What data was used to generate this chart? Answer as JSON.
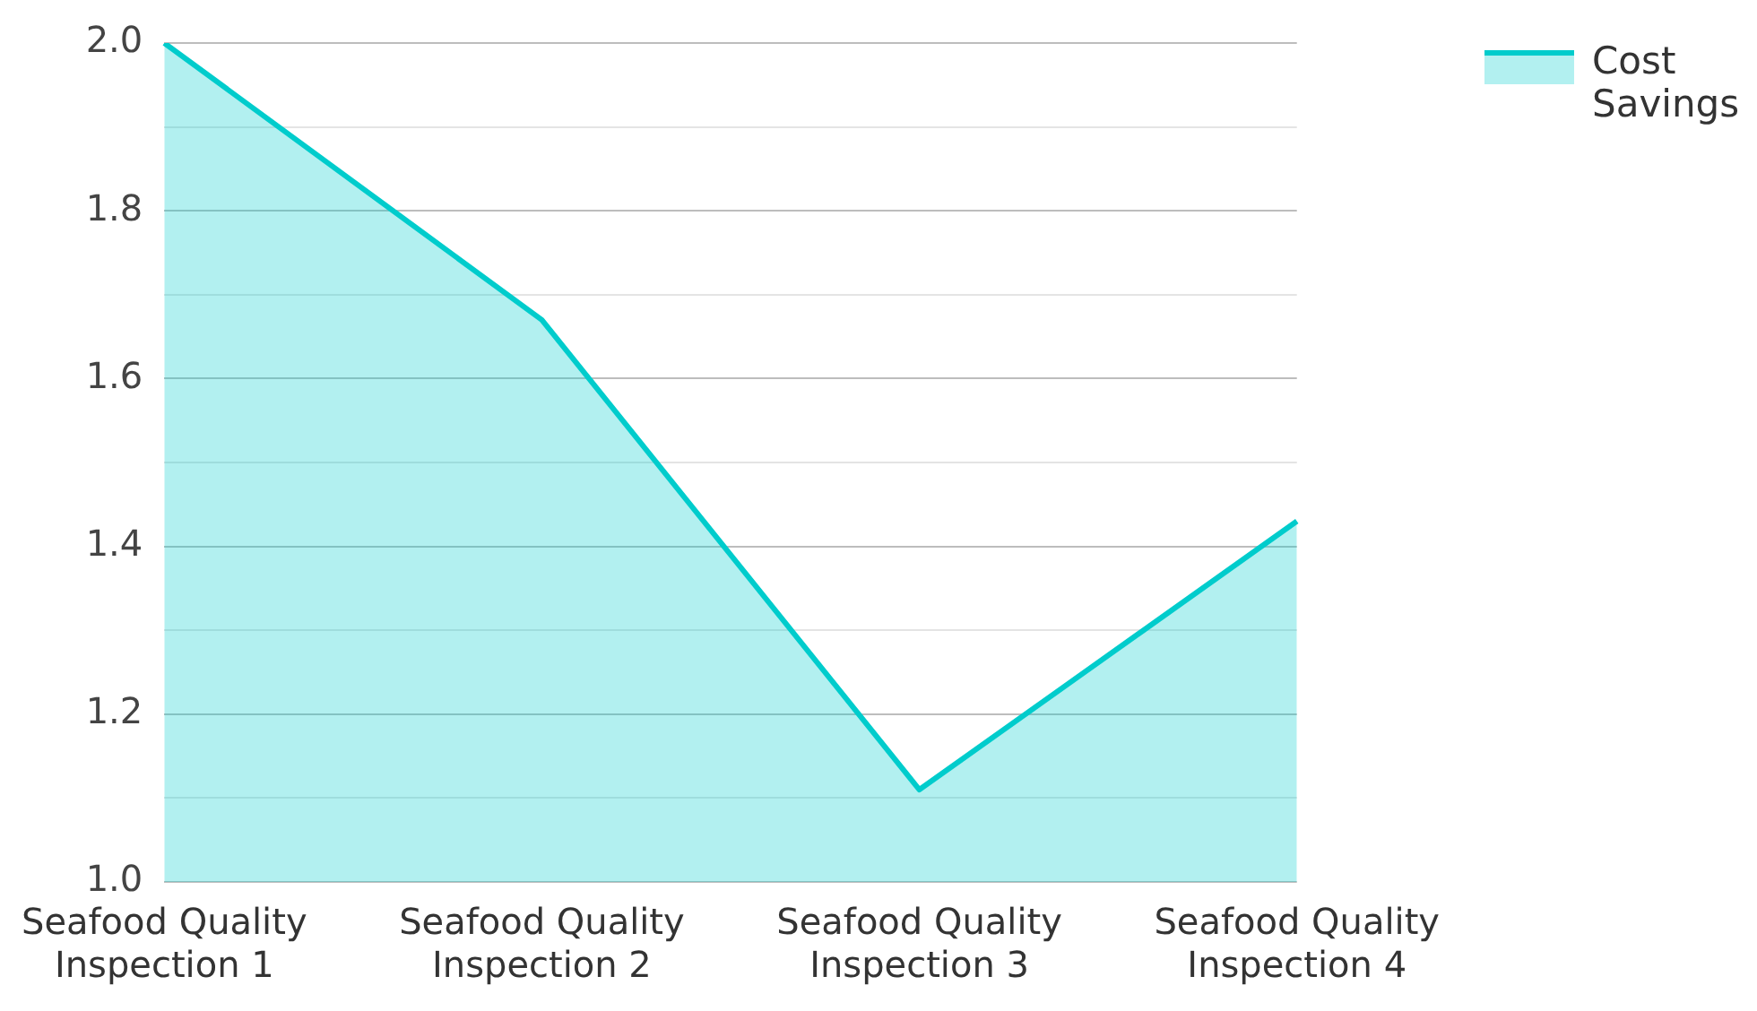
{
  "chart_data": {
    "type": "area",
    "categories": [
      "Seafood Quality Inspection 1",
      "Seafood Quality Inspection 2",
      "Seafood Quality Inspection 3",
      "Seafood Quality Inspection 4"
    ],
    "series": [
      {
        "name": "Cost Savings",
        "color": "#00cccc",
        "values": [
          2.0,
          1.67,
          1.11,
          1.43
        ]
      }
    ],
    "ylim": [
      1.0,
      2.0
    ],
    "yticks": [
      {
        "value": 1.0,
        "label": "1.0"
      },
      {
        "value": 1.1,
        "label": null
      },
      1.2,
      {
        "value": 1.3,
        "label": null
      },
      1.4,
      {
        "value": 1.5,
        "label": null
      },
      1.6,
      {
        "value": 1.7,
        "label": null
      },
      1.8,
      {
        "value": 1.9,
        "label": null
      },
      {
        "value": 2.0,
        "label": "2.0"
      }
    ],
    "grid": "y",
    "legend": "top right",
    "marker": "none"
  }
}
